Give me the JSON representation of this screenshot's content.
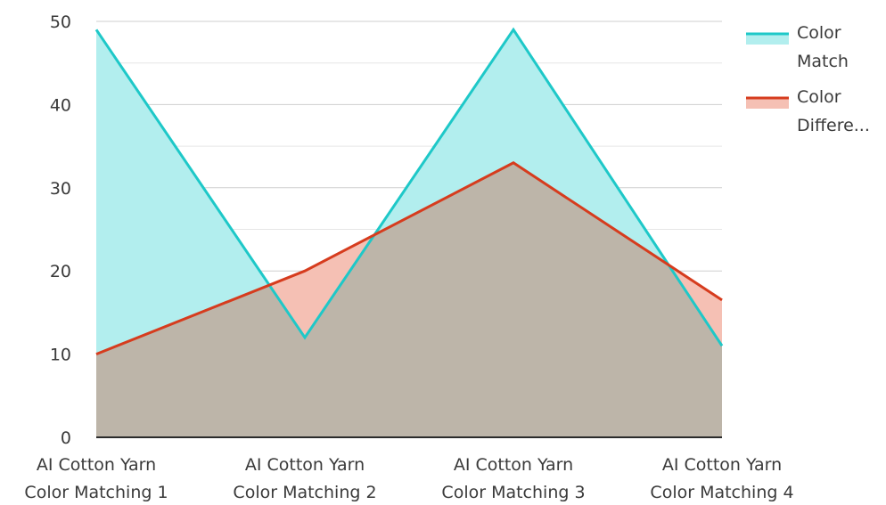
{
  "chart_data": {
    "type": "area",
    "categories": [
      [
        "AI Cotton Yarn",
        "Color Matching 1"
      ],
      [
        "AI Cotton Yarn",
        "Color Matching 2"
      ],
      [
        "AI Cotton Yarn",
        "Color Matching 3"
      ],
      [
        "AI Cotton Yarn",
        "Color Matching 4"
      ]
    ],
    "series": [
      {
        "name": [
          "Color",
          "Match"
        ],
        "values": [
          49,
          12,
          49,
          11
        ],
        "stroke_color": "#1ec8c8",
        "fill_color": "#b2eeee"
      },
      {
        "name": [
          "Color",
          "Differe..."
        ],
        "values": [
          10,
          20,
          33,
          16.5
        ],
        "stroke_color": "#d63c1e",
        "fill_color": "#f5c0b4"
      }
    ],
    "overlap_fill_color": "#bdb5a9",
    "ylim": [
      0,
      50
    ],
    "yticks": [
      0,
      10,
      20,
      30,
      40,
      50
    ],
    "grid": true,
    "legend_position": "top-right"
  }
}
